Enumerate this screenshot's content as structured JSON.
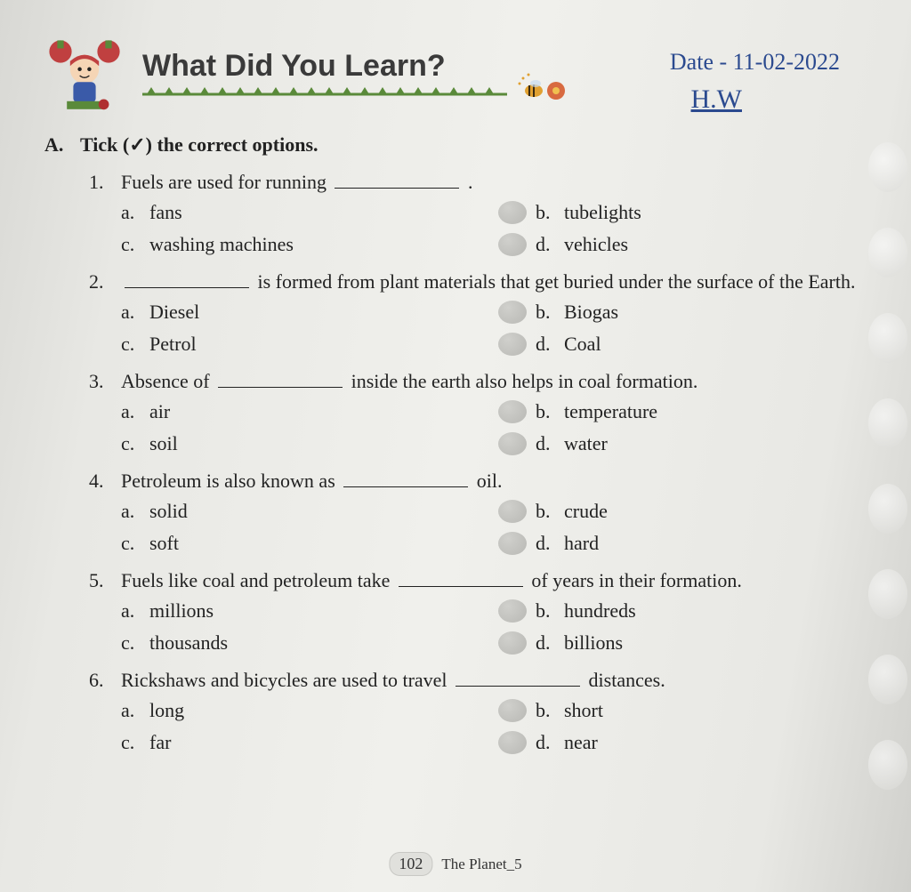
{
  "header": {
    "title": "What Did You Learn?"
  },
  "handwritten": {
    "date": "Date - 11-02-2022",
    "label": "H.W"
  },
  "section": {
    "letter": "A.",
    "instruction": "Tick (✓) the correct options."
  },
  "questions": [
    {
      "num": "1.",
      "before": "Fuels are used for running",
      "after": ".",
      "options": [
        {
          "l": "a.",
          "t": "fans"
        },
        {
          "l": "b.",
          "t": "tubelights"
        },
        {
          "l": "c.",
          "t": "washing machines"
        },
        {
          "l": "d.",
          "t": "vehicles"
        }
      ]
    },
    {
      "num": "2.",
      "before": "",
      "after": "is formed from plant materials that get buried under the surface of the Earth.",
      "options": [
        {
          "l": "a.",
          "t": "Diesel"
        },
        {
          "l": "b.",
          "t": "Biogas"
        },
        {
          "l": "c.",
          "t": "Petrol"
        },
        {
          "l": "d.",
          "t": "Coal"
        }
      ]
    },
    {
      "num": "3.",
      "before": "Absence of",
      "after": "inside the earth also helps in coal formation.",
      "options": [
        {
          "l": "a.",
          "t": "air"
        },
        {
          "l": "b.",
          "t": "temperature"
        },
        {
          "l": "c.",
          "t": "soil"
        },
        {
          "l": "d.",
          "t": "water"
        }
      ]
    },
    {
      "num": "4.",
      "before": "Petroleum is also known as",
      "after": "oil.",
      "options": [
        {
          "l": "a.",
          "t": "solid"
        },
        {
          "l": "b.",
          "t": "crude"
        },
        {
          "l": "c.",
          "t": "soft"
        },
        {
          "l": "d.",
          "t": "hard"
        }
      ]
    },
    {
      "num": "5.",
      "before": "Fuels like coal and petroleum take",
      "after": "of years in their formation.",
      "options": [
        {
          "l": "a.",
          "t": "millions"
        },
        {
          "l": "b.",
          "t": "hundreds"
        },
        {
          "l": "c.",
          "t": "thousands"
        },
        {
          "l": "d.",
          "t": "billions"
        }
      ]
    },
    {
      "num": "6.",
      "before": "Rickshaws and bicycles are used to travel",
      "after": "distances.",
      "options": [
        {
          "l": "a.",
          "t": "long"
        },
        {
          "l": "b.",
          "t": "short"
        },
        {
          "l": "c.",
          "t": "far"
        },
        {
          "l": "d.",
          "t": "near"
        }
      ]
    }
  ],
  "footer": {
    "page": "102",
    "book": "The Planet_5"
  },
  "colors": {
    "garland_green": "#5a8a3a",
    "mascot_hair": "#c04040",
    "mascot_shirt": "#3a5aa8",
    "bee_body": "#e0a030",
    "flower": "#d86a40"
  }
}
